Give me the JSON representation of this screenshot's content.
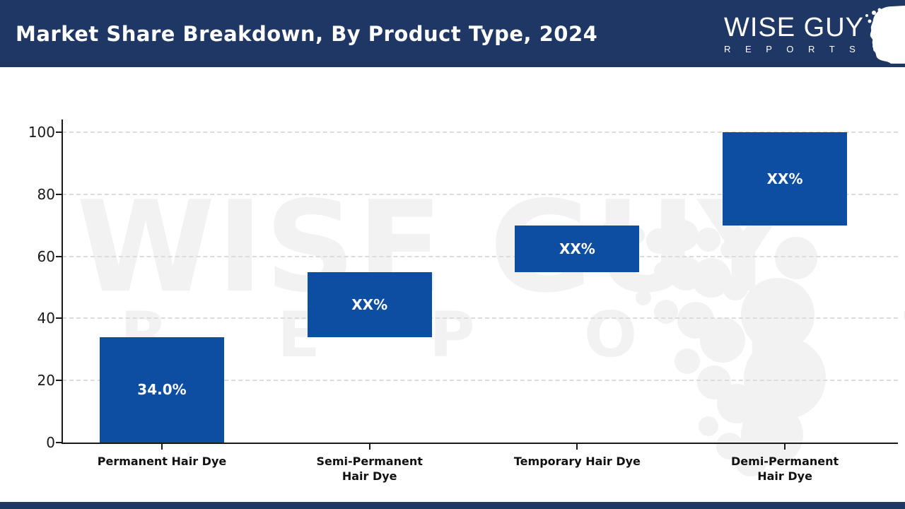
{
  "header": {
    "title": "Market Share Breakdown, By Product Type, 2024",
    "logo_main": "WISE GUY",
    "logo_sub": "R E P O R T S"
  },
  "watermark": {
    "big_text": "WISE GUY",
    "sub_text": "R E P O R T S"
  },
  "colors": {
    "header_navy": "#1f3764",
    "bar_blue": "#0d4da2",
    "grid_gray": "#dcdcdc",
    "watermark_gray": "#f2f2f2",
    "axis_black": "#1a1a1a",
    "value_label_white": "#ffffff"
  },
  "chart_data": {
    "type": "bar",
    "subtype": "waterfall-floating-bars",
    "title": "Market Share Breakdown, By Product Type, 2024",
    "xlabel": "",
    "ylabel": "",
    "ylim": [
      0,
      104
    ],
    "yticks": [
      0,
      20,
      40,
      60,
      80,
      100
    ],
    "grid": "horizontal-dashed",
    "legend": "none",
    "categories": [
      [
        "Permanent Hair Dye"
      ],
      [
        "Semi-Permanent",
        "Hair Dye"
      ],
      [
        "Temporary Hair Dye"
      ],
      [
        "Demi-Permanent",
        "Hair Dye"
      ]
    ],
    "series": [
      {
        "name": "Market Share",
        "segments": [
          {
            "from": 0,
            "to": 34,
            "label": "34.0%"
          },
          {
            "from": 34,
            "to": 55,
            "label": "XX%"
          },
          {
            "from": 55,
            "to": 70,
            "label": "XX%"
          },
          {
            "from": 70,
            "to": 100,
            "label": "XX%"
          }
        ]
      }
    ]
  }
}
